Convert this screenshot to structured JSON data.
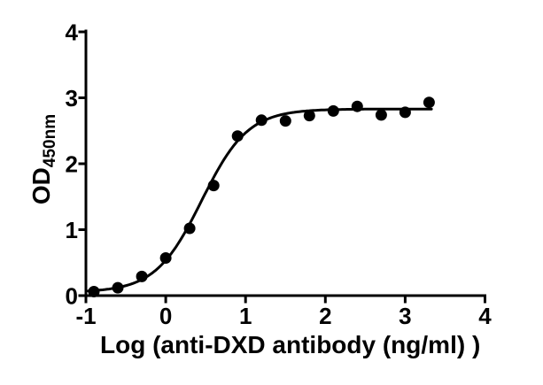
{
  "figure": {
    "background_color": "#ffffff",
    "foreground_color": "#000000"
  },
  "chart_data": {
    "type": "scatter",
    "title": "",
    "xlabel": "Log (anti-DXD antibody (ng/ml) )",
    "ylabel_main": "OD",
    "ylabel_sub": "450nm",
    "xlim": [
      -1,
      4
    ],
    "ylim": [
      0,
      4
    ],
    "xticks": [
      "-1",
      "0",
      "1",
      "2",
      "3",
      "4"
    ],
    "yticks": [
      "0",
      "1",
      "2",
      "3",
      "4"
    ],
    "grid": false,
    "legend": "none",
    "marker_color": "#000000",
    "line_color": "#000000",
    "marker_shape": "filled-circle",
    "points": {
      "x": [
        -0.9,
        -0.6,
        -0.3,
        0.0,
        0.3,
        0.6,
        0.9,
        1.2,
        1.5,
        1.8,
        2.1,
        2.4,
        2.7,
        3.0,
        3.3
      ],
      "y": [
        0.06,
        0.12,
        0.29,
        0.57,
        1.02,
        1.67,
        2.42,
        2.66,
        2.65,
        2.73,
        2.8,
        2.87,
        2.74,
        2.78,
        2.93
      ]
    },
    "curve_fit": {
      "model": "4PL-sigmoid",
      "bottom": 0.05,
      "top": 2.83,
      "log_ec50": 0.45,
      "hill": 1.5,
      "x_range": [
        -0.97,
        3.33
      ]
    }
  }
}
